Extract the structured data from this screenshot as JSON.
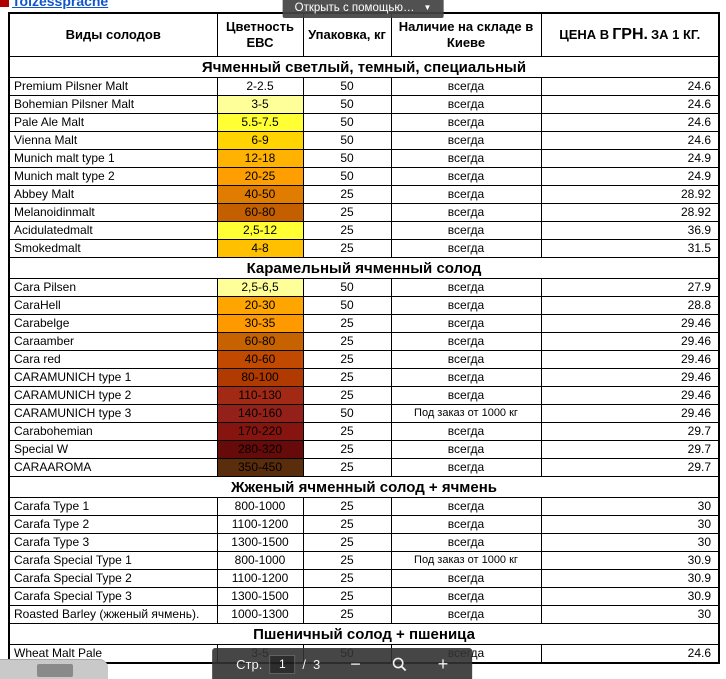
{
  "page_header": {
    "link_text": "Tolzessprache"
  },
  "viewer": {
    "open_with_label": "Открыть с помощью…",
    "dropdown_caret": "▼",
    "page_label": "Стр.",
    "page_current": "1",
    "page_divider": "/",
    "page_total": "3",
    "zoom_out_glyph": "−",
    "zoom_in_glyph": "+"
  },
  "table": {
    "headers": {
      "malt_types": "Виды солодов",
      "color": "Цветность ЕВС",
      "packaging": "Упаковка, кг",
      "availability": "Наличие на складе в Киеве",
      "price_prefix": "ЦЕНА В",
      "price_currency": "ГРН.",
      "price_suffix": "ЗА 1 КГ."
    },
    "sections": [
      {
        "title": "Ячменный светлый, темный, специальный",
        "rows": [
          {
            "name": "Premium Pilsner Malt",
            "ebc": "2-2.5",
            "ebc_color": "#FFFFFF",
            "pack": "50",
            "avail": "всегда",
            "price": "24.6"
          },
          {
            "name": "Bohemian Pilsner Malt",
            "ebc": "3-5",
            "ebc_color": "#FFFF99",
            "pack": "50",
            "avail": "всегда",
            "price": "24.6"
          },
          {
            "name": "Pale Ale Malt",
            "ebc": "5.5-7.5",
            "ebc_color": "#FFFF33",
            "pack": "50",
            "avail": "всегда",
            "price": "24.6"
          },
          {
            "name": "Vienna Malt",
            "ebc": "6-9",
            "ebc_color": "#FFD400",
            "pack": "50",
            "avail": "всегда",
            "price": "24.6"
          },
          {
            "name": "Munich malt  type 1",
            "ebc": "12-18",
            "ebc_color": "#FFB300",
            "pack": "50",
            "avail": "всегда",
            "price": "24.9"
          },
          {
            "name": "Munich malt  type 2",
            "ebc": "20-25",
            "ebc_color": "#FF9E00",
            "pack": "50",
            "avail": "всегда",
            "price": "24.9"
          },
          {
            "name": "Abbey Malt",
            "ebc": "40-50",
            "ebc_color": "#E07D00",
            "pack": "25",
            "avail": "всегда",
            "price": "28.92"
          },
          {
            "name": "Melanoidinmalt",
            "ebc": "60-80",
            "ebc_color": "#C45F00",
            "pack": "25",
            "avail": "всегда",
            "price": "28.92"
          },
          {
            "name": "Acidulatedmalt",
            "ebc": "2,5-12",
            "ebc_color": "#FFFF33",
            "pack": "25",
            "avail": "всегда",
            "price": "36.9"
          },
          {
            "name": "Smokedmalt",
            "ebc": "4-8",
            "ebc_color": "#FFC000",
            "pack": "25",
            "avail": "всегда",
            "price": "31.5"
          }
        ]
      },
      {
        "title": "Карамельный ячменный солод",
        "rows": [
          {
            "name": "Cara Pilsen",
            "ebc": "2,5-6,5",
            "ebc_color": "#FFFF99",
            "pack": "50",
            "avail": "всегда",
            "price": "27.9"
          },
          {
            "name": "CaraHell",
            "ebc": "20-30",
            "ebc_color": "#FFA500",
            "pack": "50",
            "avail": "всегда",
            "price": "28.8"
          },
          {
            "name": "Carabelge",
            "ebc": "30-35",
            "ebc_color": "#FF9900",
            "pack": "25",
            "avail": "всегда",
            "price": "29.46"
          },
          {
            "name": "Caraamber",
            "ebc": "60-80",
            "ebc_color": "#C66300",
            "pack": "25",
            "avail": "всегда",
            "price": "29.46"
          },
          {
            "name": "Cara red",
            "ebc": "40-60",
            "ebc_color": "#C24A00",
            "pack": "25",
            "avail": "всегда",
            "price": "29.46"
          },
          {
            "name": "CARAMUNICH type 1",
            "ebc": "80-100",
            "ebc_color": "#B03A00",
            "pack": "25",
            "avail": "всегда",
            "price": "29.46"
          },
          {
            "name": "CARAMUNICH  type 2",
            "ebc": "110-130",
            "ebc_color": "#A22A14",
            "pack": "25",
            "avail": "всегда",
            "price": "29.46"
          },
          {
            "name": "CARAMUNICH  type 3",
            "ebc": "140-160",
            "ebc_color": "#94201A",
            "pack": "50",
            "avail": "Под заказ от 1000 кг",
            "price": "29.46"
          },
          {
            "name": "Carabohemian",
            "ebc": "170-220",
            "ebc_color": "#86140F",
            "pack": "25",
            "avail": "всегда",
            "price": "29.7"
          },
          {
            "name": "Special W",
            "ebc": "280-320",
            "ebc_color": "#660A0A",
            "pack": "25",
            "avail": "всегда",
            "price": "29.7"
          },
          {
            "name": "CARAAROMA",
            "ebc": "350-450",
            "ebc_color": "#5A2D0C",
            "pack": "25",
            "avail": "всегда",
            "price": "29.7"
          }
        ]
      },
      {
        "title": "Жженый ячменный солод + ячмень",
        "rows": [
          {
            "name": "Carafa Type 1",
            "ebc": "800-1000",
            "ebc_color": "#FFFFFF",
            "pack": "25",
            "avail": "всегда",
            "price": "30"
          },
          {
            "name": "Carafa Type 2",
            "ebc": "1100-1200",
            "ebc_color": "#FFFFFF",
            "pack": "25",
            "avail": "всегда",
            "price": "30"
          },
          {
            "name": "Carafa  Type 3",
            "ebc": "1300-1500",
            "ebc_color": "#FFFFFF",
            "pack": "25",
            "avail": "всегда",
            "price": "30"
          },
          {
            "name": "Carafa Special  Type 1",
            "ebc": "800-1000",
            "ebc_color": "#FFFFFF",
            "pack": "25",
            "avail": "Под заказ от 1000 кг",
            "price": "30.9"
          },
          {
            "name": "Carafa  Special Type 2",
            "ebc": "1100-1200",
            "ebc_color": "#FFFFFF",
            "pack": "25",
            "avail": "всегда",
            "price": "30.9"
          },
          {
            "name": "Carafa Special Type 3",
            "ebc": "1300-1500",
            "ebc_color": "#FFFFFF",
            "pack": "25",
            "avail": "всегда",
            "price": "30.9"
          },
          {
            "name": "Roasted Barley (жженый ячмень).",
            "ebc": "1000-1300",
            "ebc_color": "#FFFFFF",
            "pack": "25",
            "avail": "всегда",
            "price": "30"
          }
        ]
      },
      {
        "title": "Пшеничный солод + пшеница",
        "rows": [
          {
            "name": "Wheat Malt Pale",
            "ebc": "3-5",
            "ebc_color": "#FFFFFF",
            "pack": "50",
            "avail": "всегда",
            "price": "24.6"
          }
        ]
      }
    ]
  }
}
